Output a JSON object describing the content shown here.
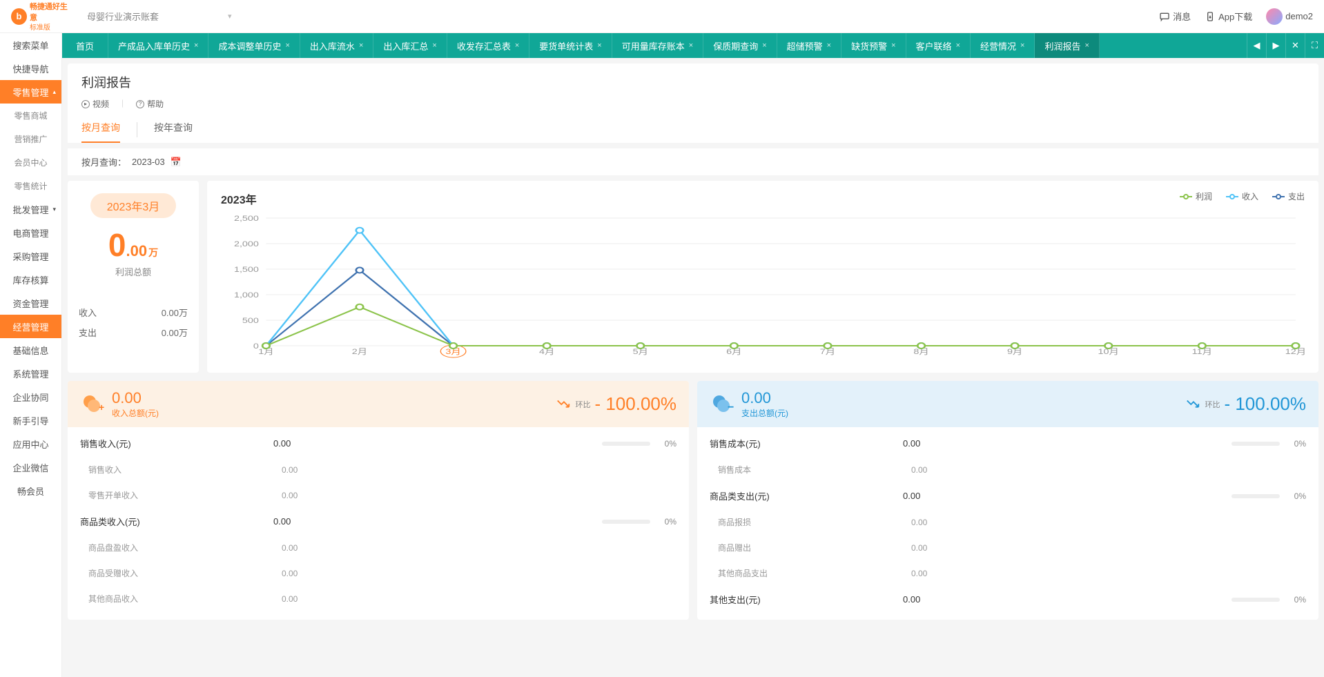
{
  "colors": {
    "primary_orange": "#ff7f27",
    "primary_teal": "#10a797",
    "teal_dark": "#0d8a7c",
    "blue": "#2196d6",
    "profit_line": "#8bc34a",
    "income_line": "#4fc3f7",
    "expense_line": "#3f72af",
    "badge_bg": "#ffe9d6",
    "income_panel_bg": "#fdf1e4",
    "expense_panel_bg": "#e3f1fa",
    "bg": "#f5f5f5"
  },
  "logo": {
    "brand": "畅捷通好生意",
    "edition": "标准版"
  },
  "topbar": {
    "account": "母婴行业演示账套",
    "msg": "消息",
    "app": "App下载",
    "user": "demo2"
  },
  "sidebar": {
    "search": "搜索菜单",
    "quicknav": "快捷导航",
    "retail": "零售管理",
    "retail_subs": [
      "零售商城",
      "营销推广",
      "会员中心",
      "零售统计"
    ],
    "wholesale": "批发管理",
    "ecommerce": "电商管理",
    "purchase": "采购管理",
    "inventory": "库存核算",
    "finance": "资金管理",
    "business": "经营管理",
    "basic": "基础信息",
    "system": "系统管理",
    "collab": "企业协同",
    "guide": "新手引导",
    "appcenter": "应用中心",
    "wecom": "企业微信",
    "member": "畅会员"
  },
  "tabs": {
    "home": "首页",
    "items": [
      "产成品入库单历史",
      "成本调整单历史",
      "出入库流水",
      "出入库汇总",
      "收发存汇总表",
      "要货单统计表",
      "可用量库存账本",
      "保质期查询",
      "超储预警",
      "缺货预警",
      "客户联络",
      "经营情况",
      "利润报告"
    ],
    "active_index": 12
  },
  "page": {
    "title": "利润报告",
    "video": "视频",
    "help": "帮助",
    "tab_month": "按月查询",
    "tab_year": "按年查询",
    "query_label": "按月查询：",
    "query_value": "2023-03"
  },
  "summary": {
    "period": "2023年3月",
    "profit_int": "0",
    "profit_dec": ".00",
    "profit_unit": "万",
    "profit_label": "利润总额",
    "income_label": "收入",
    "income_value": "0.00万",
    "expense_label": "支出",
    "expense_value": "0.00万"
  },
  "chart": {
    "title": "2023年",
    "type": "line",
    "legend": [
      {
        "label": "利润",
        "color": "#8bc34a"
      },
      {
        "label": "收入",
        "color": "#4fc3f7"
      },
      {
        "label": "支出",
        "color": "#3f72af"
      }
    ],
    "xlabels": [
      "1月",
      "2月",
      "3月",
      "4月",
      "5月",
      "6月",
      "7月",
      "8月",
      "9月",
      "10月",
      "11月",
      "12月"
    ],
    "highlight_x_index": 2,
    "ylim": [
      0,
      2500
    ],
    "ytick_step": 500,
    "yticks": [
      "2,500",
      "2,000",
      "1,500",
      "1,000",
      "500",
      "0"
    ],
    "series": {
      "profit": [
        0,
        760,
        0,
        0,
        0,
        0,
        0,
        0,
        0,
        0,
        0,
        0
      ],
      "income": [
        0,
        2260,
        0,
        0,
        0,
        0,
        0,
        0,
        0,
        0,
        0,
        0
      ],
      "expense": [
        0,
        1480,
        0,
        0,
        0,
        0,
        0,
        0,
        0,
        0,
        0,
        0
      ]
    },
    "grid_color": "#eeeeee",
    "axis_color": "#cccccc",
    "label_fontsize": 11,
    "line_width": 2,
    "marker_radius": 4
  },
  "income_panel": {
    "amount": "0.00",
    "amount_label": "收入总额(元)",
    "ratio_label": "环比",
    "ratio_value": "- 100.00%",
    "groups": [
      {
        "label": "销售收入(元)",
        "value": "0.00",
        "pct": "0%",
        "subs": [
          {
            "label": "销售收入",
            "value": "0.00"
          },
          {
            "label": "零售开单收入",
            "value": "0.00"
          }
        ]
      },
      {
        "label": "商品类收入(元)",
        "value": "0.00",
        "pct": "0%",
        "subs": [
          {
            "label": "商品盘盈收入",
            "value": "0.00"
          },
          {
            "label": "商品受赠收入",
            "value": "0.00"
          },
          {
            "label": "其他商品收入",
            "value": "0.00"
          }
        ]
      }
    ]
  },
  "expense_panel": {
    "amount": "0.00",
    "amount_label": "支出总额(元)",
    "ratio_label": "环比",
    "ratio_value": "- 100.00%",
    "groups": [
      {
        "label": "销售成本(元)",
        "value": "0.00",
        "pct": "0%",
        "subs": [
          {
            "label": "销售成本",
            "value": "0.00"
          }
        ]
      },
      {
        "label": "商品类支出(元)",
        "value": "0.00",
        "pct": "0%",
        "subs": [
          {
            "label": "商品报损",
            "value": "0.00"
          },
          {
            "label": "商品赠出",
            "value": "0.00"
          },
          {
            "label": "其他商品支出",
            "value": "0.00"
          }
        ]
      },
      {
        "label": "其他支出(元)",
        "value": "0.00",
        "pct": "0%",
        "subs": []
      }
    ]
  }
}
